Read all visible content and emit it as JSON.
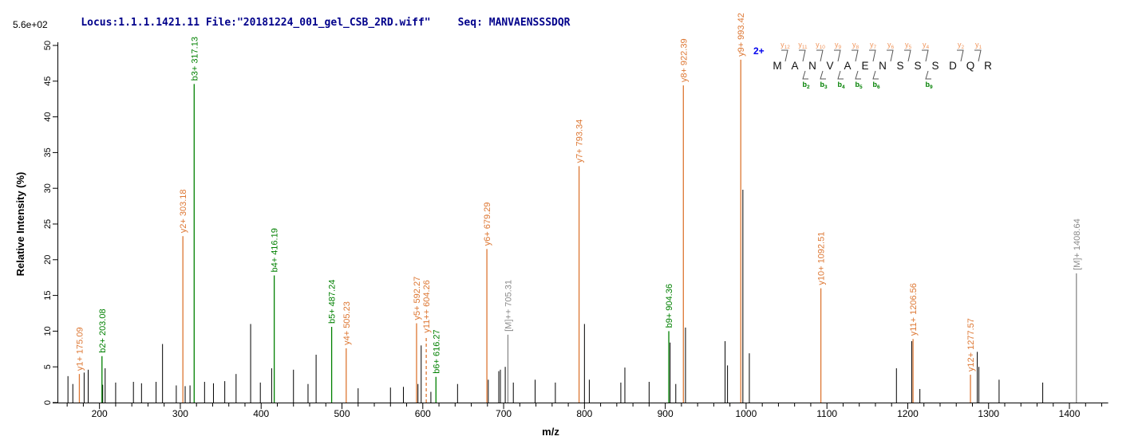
{
  "header": {
    "locus_file": "Locus:1.1.1.1421.11 File:\"20181224_001_gel_CSB_2RD.wiff\"",
    "seq_label": "Seq:",
    "seq_value": "MANVAENSSSDQR"
  },
  "colors": {
    "header_text": "#00008b",
    "y_ion": "#dd7733",
    "b_ion": "#008000",
    "precursor": "#8a8a8a",
    "unlabeled_peak": "#000000",
    "axis": "#000000",
    "charge_label": "#0000ee",
    "y_marker": "#f0945a",
    "b_marker": "#008000",
    "bracket": "#555555"
  },
  "chart_data": {
    "type": "bar",
    "subtype": "ms2_fragment_spectrum",
    "title": "",
    "xlabel": "m/z",
    "ylabel": "Relative  Intensity (%)",
    "max_intensity_label": "5.6e+02",
    "x_range": [
      148,
      1448
    ],
    "y_range": [
      0,
      50
    ],
    "x_major_ticks": [
      200,
      300,
      400,
      500,
      600,
      700,
      800,
      900,
      1000,
      1100,
      1200,
      1300,
      1400
    ],
    "x_minor_tick_step": 20,
    "y_ticks": [
      0,
      5,
      10,
      15,
      20,
      25,
      30,
      35,
      40,
      45,
      50
    ],
    "grid": false,
    "legend": "none",
    "labeled_peaks": [
      {
        "label": "y1+ 175.09",
        "type": "y",
        "mz": 175.09,
        "intensity_pct": 4.0
      },
      {
        "label": "b2+ 203.08",
        "type": "b",
        "mz": 203.08,
        "intensity_pct": 6.5
      },
      {
        "label": "y2+ 303.18",
        "type": "y",
        "mz": 303.18,
        "intensity_pct": 23.3
      },
      {
        "label": "b3+ 317.13",
        "type": "b",
        "mz": 317.13,
        "intensity_pct": 44.6
      },
      {
        "label": "b4+ 416.19",
        "type": "b",
        "mz": 416.19,
        "intensity_pct": 17.8
      },
      {
        "label": "b5+ 487.24",
        "type": "b",
        "mz": 487.24,
        "intensity_pct": 10.6
      },
      {
        "label": "y4+ 505.23",
        "type": "y",
        "mz": 505.23,
        "intensity_pct": 7.6
      },
      {
        "label": "y5+ 592.27",
        "type": "y",
        "mz": 592.27,
        "intensity_pct": 11.1
      },
      {
        "label": "y11++ 604.26",
        "type": "y",
        "mz": 604.26,
        "intensity_pct": 9.3,
        "dashed": true
      },
      {
        "label": "b6+ 616.27",
        "type": "b",
        "mz": 616.27,
        "intensity_pct": 3.6
      },
      {
        "label": "y6+ 679.29",
        "type": "y",
        "mz": 679.29,
        "intensity_pct": 21.5
      },
      {
        "label": "[M]++ 705.31",
        "type": "precursor",
        "mz": 705.31,
        "intensity_pct": 9.5
      },
      {
        "label": "y7+ 793.34",
        "type": "y",
        "mz": 793.34,
        "intensity_pct": 33.1
      },
      {
        "label": "b9+ 904.36",
        "type": "b",
        "mz": 904.36,
        "intensity_pct": 10.0
      },
      {
        "label": "y8+ 922.39",
        "type": "y",
        "mz": 922.39,
        "intensity_pct": 44.4
      },
      {
        "label": "y9+ 993.42",
        "type": "y",
        "mz": 993.42,
        "intensity_pct": 48.0
      },
      {
        "label": "y10+ 1092.51",
        "type": "y",
        "mz": 1092.51,
        "intensity_pct": 16.0
      },
      {
        "label": "y11+ 1206.56",
        "type": "y",
        "mz": 1206.56,
        "intensity_pct": 8.9
      },
      {
        "label": "y12+ 1277.57",
        "type": "y",
        "mz": 1277.57,
        "intensity_pct": 3.9
      },
      {
        "label": "[M]+ 1408.64",
        "type": "precursor",
        "mz": 1408.64,
        "intensity_pct": 18.1
      }
    ],
    "unlabeled_peaks": [
      [
        161,
        3.7
      ],
      [
        167,
        2.6
      ],
      [
        181,
        4.2
      ],
      [
        186,
        4.6
      ],
      [
        204,
        2.5
      ],
      [
        207,
        4.8
      ],
      [
        220,
        2.8
      ],
      [
        242,
        2.9
      ],
      [
        252,
        2.7
      ],
      [
        270,
        2.9
      ],
      [
        278,
        8.2
      ],
      [
        295,
        2.4
      ],
      [
        306,
        2.3
      ],
      [
        312,
        2.4
      ],
      [
        330,
        2.9
      ],
      [
        341,
        2.7
      ],
      [
        355,
        3.0
      ],
      [
        369,
        4.0
      ],
      [
        387,
        11.0
      ],
      [
        399,
        2.8
      ],
      [
        413,
        4.8
      ],
      [
        440,
        4.6
      ],
      [
        458,
        2.6
      ],
      [
        468,
        6.7
      ],
      [
        520,
        2.0
      ],
      [
        560,
        2.1
      ],
      [
        576,
        2.2
      ],
      [
        594,
        2.6
      ],
      [
        598,
        8.0
      ],
      [
        610,
        1.5
      ],
      [
        643,
        2.6
      ],
      [
        681,
        3.2
      ],
      [
        694,
        4.4
      ],
      [
        696,
        4.6
      ],
      [
        702,
        5.0
      ],
      [
        712,
        2.8
      ],
      [
        739,
        3.2
      ],
      [
        764,
        2.8
      ],
      [
        800,
        11.0
      ],
      [
        806,
        3.2
      ],
      [
        845,
        2.8
      ],
      [
        850,
        4.9
      ],
      [
        880,
        2.9
      ],
      [
        906,
        8.4
      ],
      [
        913,
        2.6
      ],
      [
        925,
        10.5
      ],
      [
        974,
        8.6
      ],
      [
        977,
        5.2
      ],
      [
        996,
        29.8
      ],
      [
        1004,
        6.9
      ],
      [
        1186,
        4.8
      ],
      [
        1205,
        8.6
      ],
      [
        1215,
        1.9
      ],
      [
        1286,
        7.1
      ],
      [
        1288,
        5.0
      ],
      [
        1313,
        3.2
      ],
      [
        1367,
        2.8
      ]
    ]
  },
  "peptide_diagram": {
    "charge_label": "2+",
    "residues": [
      "M",
      "A",
      "N",
      "V",
      "A",
      "E",
      "N",
      "S",
      "S",
      "S",
      "D",
      "Q",
      "R"
    ],
    "y_markers": [
      {
        "boundary": 1,
        "ion": "y",
        "index": "12"
      },
      {
        "boundary": 2,
        "ion": "y",
        "index": "11"
      },
      {
        "boundary": 3,
        "ion": "y",
        "index": "10"
      },
      {
        "boundary": 4,
        "ion": "y",
        "index": "9"
      },
      {
        "boundary": 5,
        "ion": "y",
        "index": "8"
      },
      {
        "boundary": 6,
        "ion": "y",
        "index": "7"
      },
      {
        "boundary": 7,
        "ion": "y",
        "index": "6"
      },
      {
        "boundary": 8,
        "ion": "y",
        "index": "5"
      },
      {
        "boundary": 9,
        "ion": "y",
        "index": "4"
      },
      {
        "boundary": 11,
        "ion": "y",
        "index": "2"
      },
      {
        "boundary": 12,
        "ion": "y",
        "index": "1"
      }
    ],
    "b_markers": [
      {
        "boundary": 2,
        "ion": "b",
        "index": "2"
      },
      {
        "boundary": 3,
        "ion": "b",
        "index": "3"
      },
      {
        "boundary": 4,
        "ion": "b",
        "index": "4"
      },
      {
        "boundary": 5,
        "ion": "b",
        "index": "5"
      },
      {
        "boundary": 6,
        "ion": "b",
        "index": "6"
      },
      {
        "boundary": 9,
        "ion": "b",
        "index": "9"
      }
    ]
  }
}
